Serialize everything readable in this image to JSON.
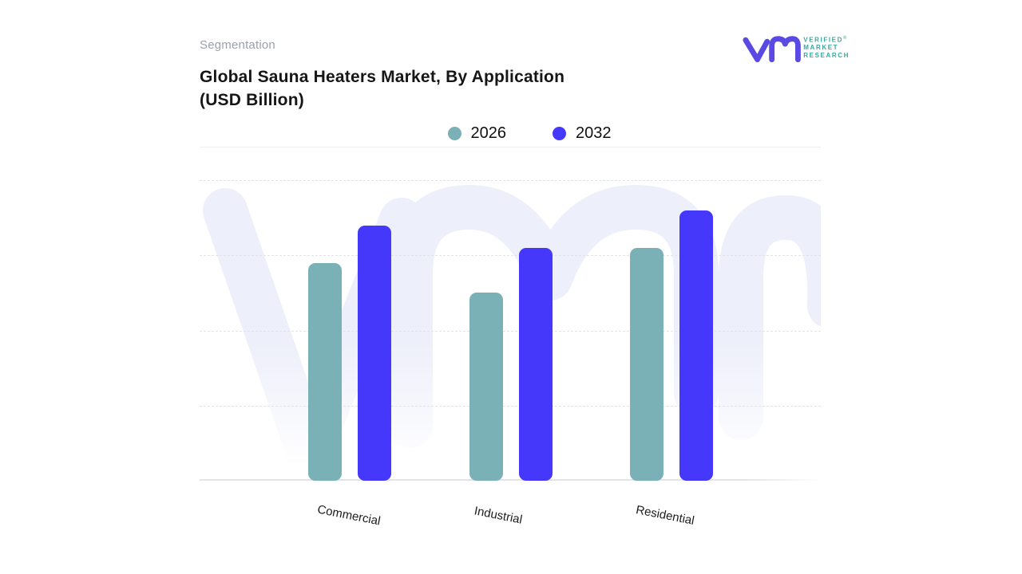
{
  "header": {
    "eyebrow": "Segmentation",
    "title_line1": "Global Sauna Heaters Market, By Application",
    "title_line2": "(USD Billion)"
  },
  "logo": {
    "line1": "VERIFIED",
    "line2": "MARKET",
    "line3": "RESEARCH",
    "registered": "®",
    "mark_color": "#5a4ae3",
    "text_color": "#38a89e"
  },
  "legend": [
    {
      "label": "2026",
      "color": "#79b1b7"
    },
    {
      "label": "2032",
      "color": "#4638fb"
    }
  ],
  "watermark": {
    "icon": "vmr-watermark",
    "color": "#edeffa"
  },
  "chart_data": {
    "type": "bar",
    "title": "Global Sauna Heaters Market, By Application (USD Billion)",
    "categories": [
      "Commercial",
      "Industrial",
      "Residential"
    ],
    "series": [
      {
        "name": "2026",
        "color": "#79b1b7",
        "values": [
          2.9,
          2.5,
          3.1
        ]
      },
      {
        "name": "2032",
        "color": "#4638fb",
        "values": [
          3.4,
          3.1,
          3.6
        ]
      }
    ],
    "xlabel": "",
    "ylabel": "",
    "ylim": [
      0,
      4
    ],
    "grid": "horizontal-dashed",
    "legend_position": "top-center",
    "axis_tick_labels": false,
    "value_labels": false
  }
}
